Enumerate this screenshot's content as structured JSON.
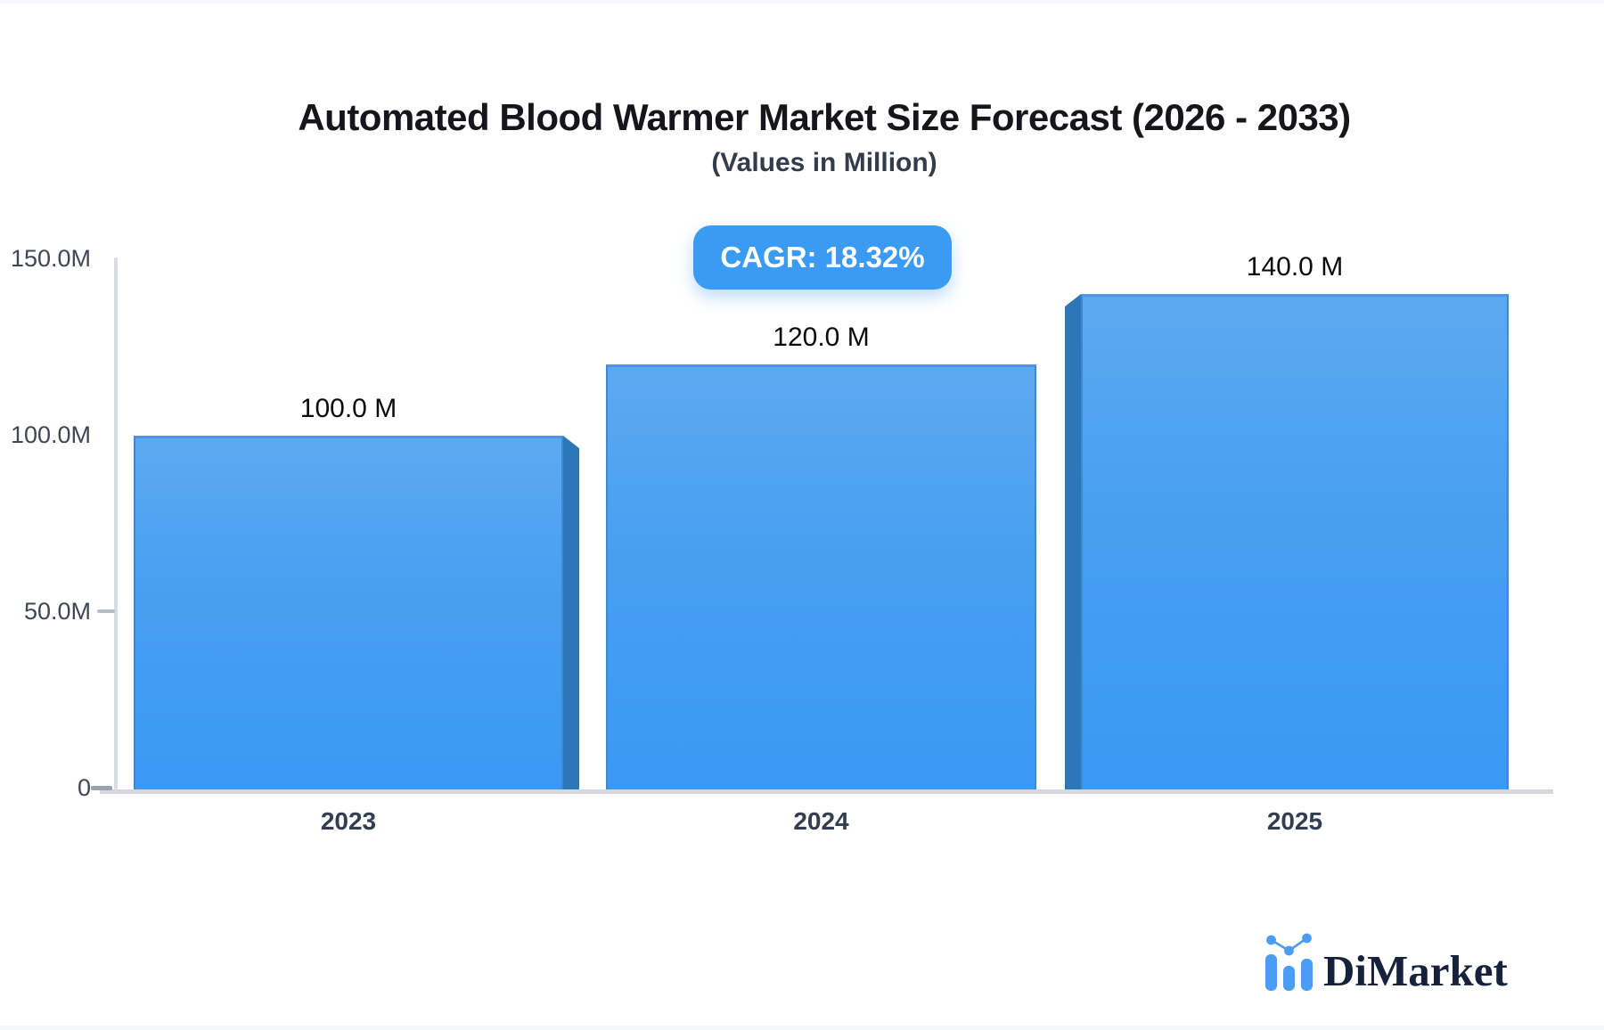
{
  "page": {
    "title": "Automated Blood Warmer Market Size Forecast (2026 - 2033)",
    "subtitle": "(Values in Million)",
    "cagr_badge": "CAGR: 18.32%",
    "brand": "DiMarket"
  },
  "chart_data": {
    "type": "bar",
    "title": "Automated Blood Warmer Market Size Forecast (2026 - 2033)",
    "subtitle": "(Values in Million)",
    "cagr": "18.32%",
    "categories": [
      "2023",
      "2024",
      "2025"
    ],
    "values": [
      100.0,
      120.0,
      140.0
    ],
    "value_labels": [
      "100.0 M",
      "120.0 M",
      "140.0 M"
    ],
    "y_ticks": [
      "150.0M",
      "100.0M",
      "50.0M",
      "0"
    ],
    "ylim": [
      0,
      150
    ],
    "grid": "off",
    "legend": "none",
    "bar_color_top": "#5da9f1",
    "bar_color_bottom": "#3b98f3",
    "bar_side_color": "#2d77b8",
    "badge_color": "#3b9bf3"
  }
}
